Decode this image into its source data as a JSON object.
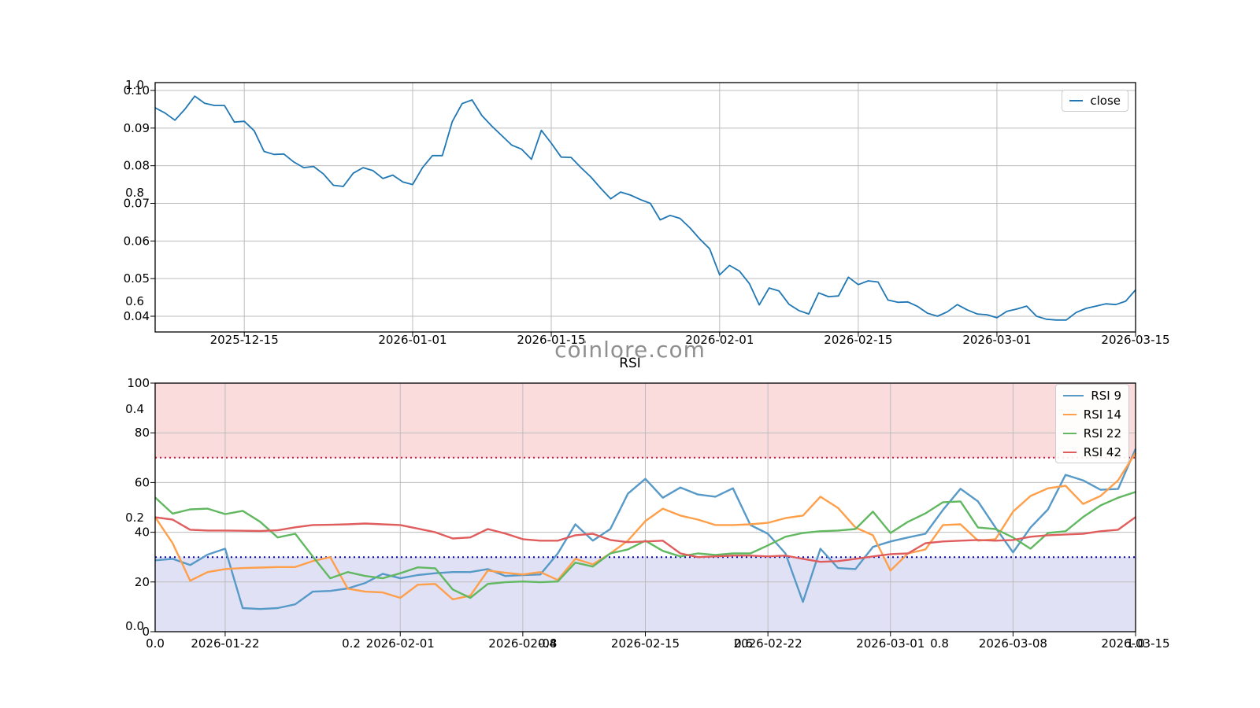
{
  "watermark": "coinlore.com",
  "rsi_title": "RSI",
  "overlay_axis": {
    "y_tick_labels": [
      "1.0",
      "0.8",
      "0.6",
      "0.4",
      "0.2",
      "0.0"
    ],
    "x_tick_labels": [
      "0.0",
      "0.2",
      "0.4",
      "0.6",
      "0.8",
      "1.0"
    ]
  },
  "chart_data": [
    {
      "type": "line",
      "title": "",
      "grid": true,
      "legend": {
        "position": "upper right",
        "entries": [
          "close"
        ]
      },
      "ylabel": "",
      "xlabel": "",
      "y_tick_labels": [
        "0.10",
        "0.09",
        "0.08",
        "0.07",
        "0.06",
        "0.05",
        "0.04"
      ],
      "y_tick_values": [
        0.1,
        0.09,
        0.08,
        0.07,
        0.06,
        0.05,
        0.04
      ],
      "x_tick_labels": [
        "2025-12-15",
        "2026-01-01",
        "2026-01-15",
        "2026-02-01",
        "2026-02-15",
        "2026-03-01",
        "2026-03-15"
      ],
      "x_tick_indices": [
        9,
        26,
        40,
        57,
        71,
        85,
        99
      ],
      "series": [
        {
          "name": "close",
          "color": "#1f77b4",
          "values": [
            0.0954,
            0.094,
            0.0921,
            0.095,
            0.0985,
            0.0966,
            0.096,
            0.096,
            0.0916,
            0.0918,
            0.0893,
            0.0838,
            0.083,
            0.0831,
            0.081,
            0.0795,
            0.0798,
            0.0778,
            0.0748,
            0.0745,
            0.078,
            0.0795,
            0.0787,
            0.0766,
            0.0775,
            0.0757,
            0.075,
            0.0795,
            0.0827,
            0.0827,
            0.0917,
            0.0965,
            0.0975,
            0.0933,
            0.0905,
            0.088,
            0.0855,
            0.0844,
            0.0817,
            0.0894,
            0.086,
            0.0823,
            0.0822,
            0.0795,
            0.077,
            0.074,
            0.0712,
            0.073,
            0.0722,
            0.071,
            0.07,
            0.0656,
            0.0668,
            0.066,
            0.0635,
            0.0605,
            0.0579,
            0.051,
            0.0535,
            0.052,
            0.0487,
            0.043,
            0.0475,
            0.0467,
            0.0432,
            0.0415,
            0.0406,
            0.0462,
            0.0452,
            0.0454,
            0.0504,
            0.0484,
            0.0494,
            0.0491,
            0.0443,
            0.0437,
            0.0438,
            0.0426,
            0.0408,
            0.04,
            0.0412,
            0.0431,
            0.0417,
            0.0406,
            0.0404,
            0.0396,
            0.0413,
            0.0419,
            0.0427,
            0.04,
            0.0392,
            0.039,
            0.039,
            0.041,
            0.0421,
            0.0427,
            0.0433,
            0.0431,
            0.044,
            0.047
          ]
        }
      ]
    },
    {
      "type": "line",
      "title": "RSI",
      "grid": true,
      "legend": {
        "position": "upper right",
        "entries": [
          "RSI 9",
          "RSI 14",
          "RSI 22",
          "RSI 42"
        ]
      },
      "ylim": [
        0,
        100
      ],
      "y_tick_labels": [
        "100",
        "80",
        "60",
        "40",
        "20",
        "0"
      ],
      "y_tick_values": [
        100,
        80,
        60,
        40,
        20,
        0
      ],
      "x_tick_labels": [
        "2026-01-22",
        "2026-02-01",
        "2026-02-08",
        "2026-02-15",
        "2026-02-22",
        "2026-03-01",
        "2026-03-08",
        "2026-03-15"
      ],
      "x_tick_indices": [
        4,
        14,
        21,
        28,
        35,
        42,
        49,
        56
      ],
      "overbought_level": 70,
      "oversold_level": 30,
      "overbought_band_color": "#fbdcdc",
      "oversold_band_color": "#e1e1f6",
      "overbought_line_color": "#dc143c",
      "oversold_line_color": "#0000cc",
      "series": [
        {
          "name": "RSI 9",
          "color": "#5799c7",
          "values": [
            28.7,
            29.3,
            26.8,
            31.0,
            33.4,
            9.5,
            9.1,
            9.5,
            11.0,
            16.1,
            16.4,
            17.4,
            19.6,
            23.3,
            21.5,
            22.8,
            23.5,
            24.0,
            24.0,
            25.2,
            22.4,
            22.8,
            23.0,
            31.5,
            43.2,
            36.6,
            41.3,
            55.5,
            61.5,
            53.9,
            58.0,
            55.2,
            54.3,
            57.7,
            42.9,
            39.4,
            31.5,
            12.0,
            33.4,
            25.6,
            25.2,
            34.1,
            36.3,
            37.9,
            39.4,
            49.0,
            57.5,
            52.4,
            41.9,
            31.9,
            41.9,
            49.2,
            63.1,
            60.9,
            57.1,
            57.4,
            73.5
          ]
        },
        {
          "name": "RSI 14",
          "color": "#ff9f4a",
          "values": [
            46.1,
            35.6,
            20.5,
            24.0,
            25.2,
            25.6,
            25.8,
            26.0,
            26.0,
            28.4,
            30.0,
            17.3,
            16.1,
            15.8,
            13.6,
            18.9,
            19.2,
            13.0,
            14.5,
            24.6,
            23.7,
            23.0,
            24.0,
            20.8,
            29.3,
            27.1,
            31.5,
            36.6,
            44.5,
            49.5,
            46.7,
            45.1,
            42.9,
            42.9,
            43.2,
            43.8,
            45.7,
            46.7,
            54.3,
            49.8,
            41.9,
            38.8,
            24.6,
            31.5,
            33.1,
            42.9,
            43.2,
            36.6,
            37.2,
            48.3,
            54.6,
            57.7,
            58.7,
            51.4,
            54.6,
            60.9,
            72.0
          ]
        },
        {
          "name": "RSI 22",
          "color": "#61b861",
          "values": [
            54.0,
            47.5,
            49.2,
            49.5,
            47.3,
            48.6,
            44.2,
            37.9,
            39.4,
            30.3,
            21.5,
            24.0,
            22.4,
            21.5,
            23.5,
            25.9,
            25.5,
            17.0,
            13.6,
            19.2,
            19.9,
            20.2,
            19.9,
            20.2,
            27.8,
            26.2,
            31.5,
            33.1,
            36.6,
            32.5,
            30.3,
            31.5,
            30.9,
            31.5,
            31.5,
            34.7,
            38.2,
            39.7,
            40.4,
            40.7,
            41.3,
            48.3,
            39.7,
            44.2,
            47.6,
            52.1,
            52.4,
            41.9,
            41.3,
            37.9,
            33.4,
            39.7,
            40.4,
            46.1,
            50.8,
            53.9,
            56.2
          ]
        },
        {
          "name": "RSI 42",
          "color": "#e05d5e",
          "values": [
            46.0,
            45.1,
            41.0,
            40.7,
            40.7,
            40.6,
            40.5,
            40.8,
            42.0,
            42.9,
            43.0,
            43.2,
            43.5,
            43.2,
            42.9,
            41.5,
            40.0,
            37.5,
            37.9,
            41.3,
            39.5,
            37.2,
            36.6,
            36.6,
            38.8,
            39.4,
            36.9,
            36.0,
            36.3,
            36.6,
            31.5,
            30.0,
            30.3,
            30.6,
            30.6,
            30.3,
            30.6,
            29.3,
            28.1,
            28.4,
            29.3,
            30.3,
            31.2,
            31.5,
            35.6,
            36.3,
            36.6,
            36.9,
            36.6,
            36.9,
            38.2,
            38.8,
            39.1,
            39.4,
            40.4,
            41.0,
            46.1
          ]
        }
      ]
    }
  ]
}
